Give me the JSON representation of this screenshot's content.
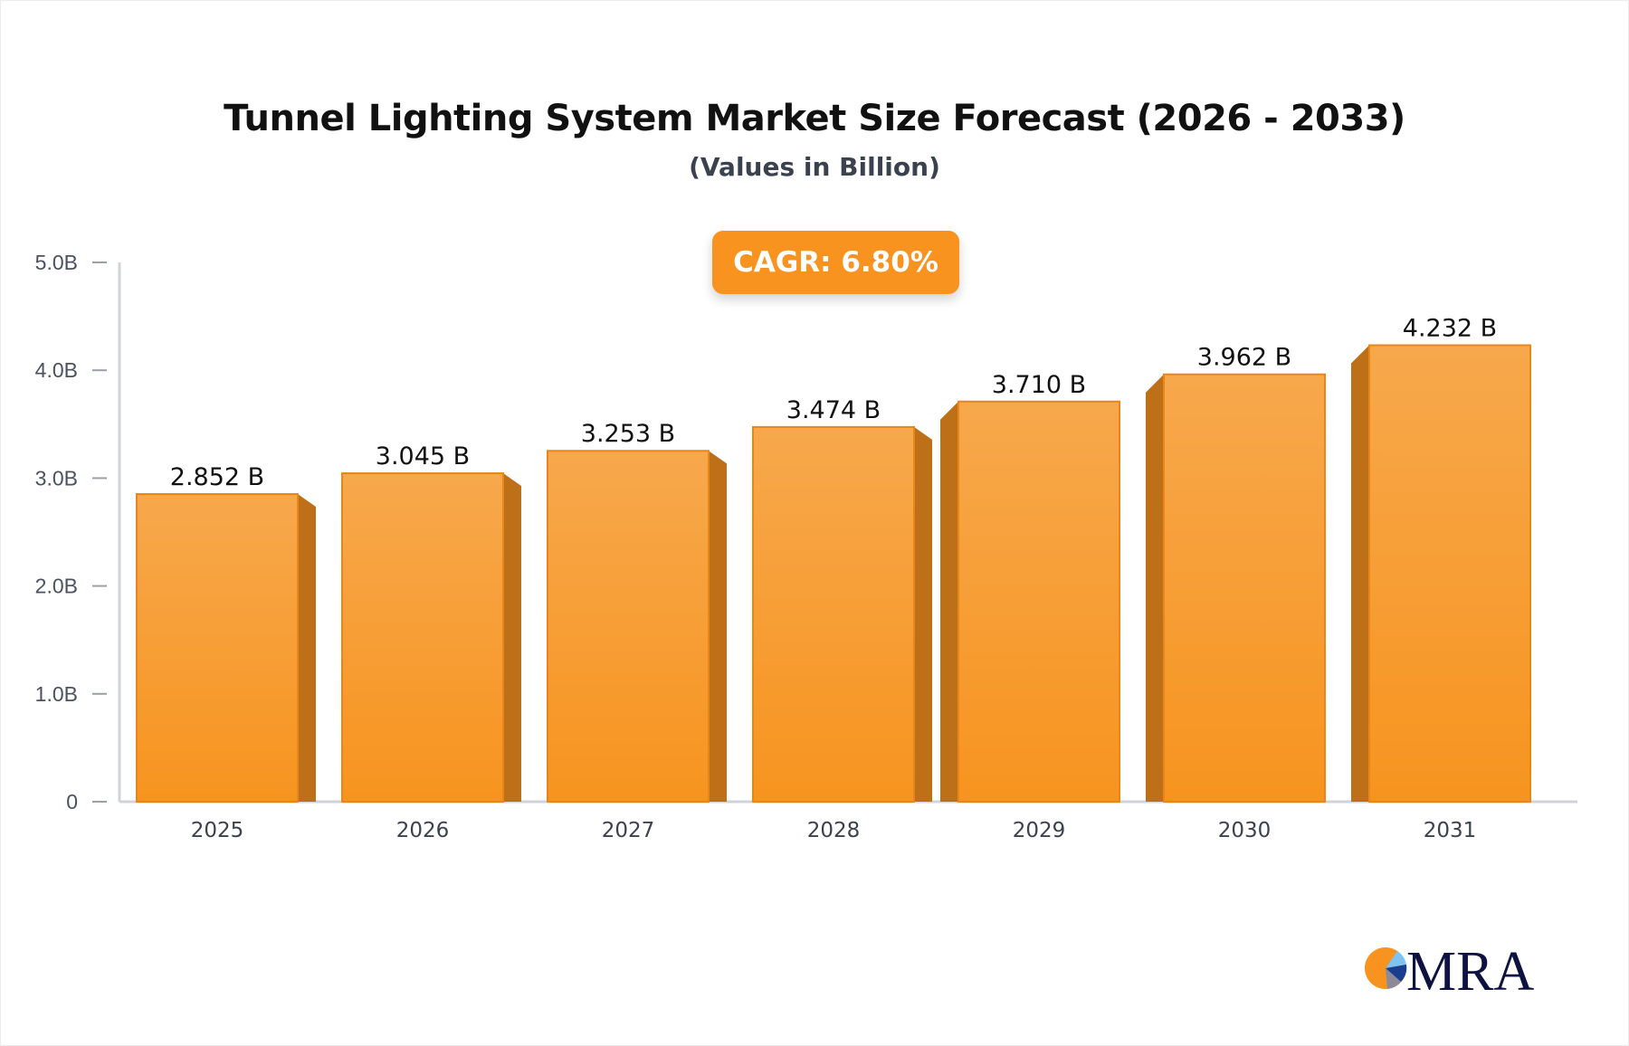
{
  "chart_data": {
    "type": "bar",
    "title": "Tunnel Lighting System Market Size Forecast (2026 - 2033)",
    "subtitle": "(Values in Billion)",
    "categories": [
      "2025",
      "2026",
      "2027",
      "2028",
      "2029",
      "2030",
      "2031"
    ],
    "values": [
      2.852,
      3.045,
      3.253,
      3.474,
      3.71,
      3.962,
      4.232
    ],
    "data_labels": [
      "2.852 B",
      "3.045 B",
      "3.253 B",
      "3.474 B",
      "3.710 B",
      "3.962 B",
      "4.232 B"
    ],
    "yticks": [
      "0",
      "1.0B",
      "2.0B",
      "3.0B",
      "4.0B",
      "5.0B"
    ],
    "ylim": [
      0,
      5
    ],
    "grid": false,
    "bar_color": "#f7a145",
    "bar_side_color": "#bd7018",
    "annotation": "CAGR: 6.80%"
  },
  "branding": {
    "logo_text": "MRA",
    "logo_color": "#0d1240",
    "logo_accent": "#f7931e"
  }
}
